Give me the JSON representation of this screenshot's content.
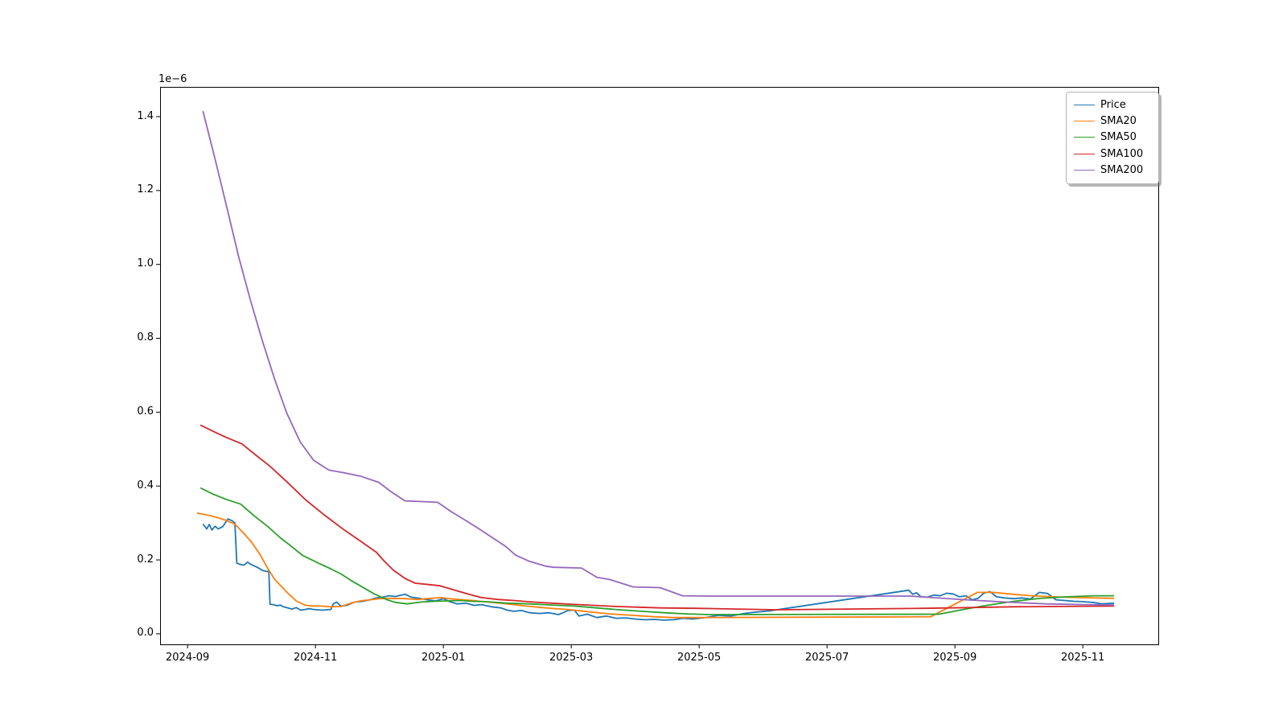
{
  "chart_data": {
    "type": "line",
    "title": "",
    "x_unit": "months since 2024-09-01",
    "x_axis": {
      "tick_labels": [
        "2024-09",
        "2024-11",
        "2025-01",
        "2025-03",
        "2025-05",
        "2025-07",
        "2025-09",
        "2025-11"
      ],
      "tick_months": [
        0,
        2,
        4,
        6,
        8,
        10,
        12,
        14
      ],
      "xlim_months": [
        -0.43,
        15.18
      ],
      "grid": false
    },
    "y_axis": {
      "offset_text": "1e−6",
      "tick_labels": [
        "0.0",
        "0.2",
        "0.4",
        "0.6",
        "0.8",
        "1.0",
        "1.2",
        "1.4"
      ],
      "tick_values": [
        0.0,
        0.2,
        0.4,
        0.6,
        0.8,
        1.0,
        1.2,
        1.4
      ],
      "ylim": [
        -0.0286,
        1.4806
      ],
      "grid": false
    },
    "legend": {
      "location": "upper right",
      "entries": [
        {
          "label": "Price",
          "color": "#1f77b4"
        },
        {
          "label": "SMA20",
          "color": "#ff7f0e"
        },
        {
          "label": "SMA50",
          "color": "#2ca02c"
        },
        {
          "label": "SMA100",
          "color": "#d62728"
        },
        {
          "label": "SMA200",
          "color": "#9467bd"
        }
      ]
    },
    "series": [
      {
        "name": "Price",
        "color": "#1f77b4",
        "points": [
          [
            0.24,
            0.297
          ],
          [
            0.3,
            0.284
          ],
          [
            0.34,
            0.296
          ],
          [
            0.38,
            0.281
          ],
          [
            0.43,
            0.291
          ],
          [
            0.48,
            0.284
          ],
          [
            0.55,
            0.29
          ],
          [
            0.63,
            0.311
          ],
          [
            0.7,
            0.306
          ],
          [
            0.74,
            0.3
          ],
          [
            0.77,
            0.191
          ],
          [
            0.84,
            0.187
          ],
          [
            0.88,
            0.186
          ],
          [
            0.94,
            0.194
          ],
          [
            0.98,
            0.189
          ],
          [
            1.04,
            0.184
          ],
          [
            1.09,
            0.18
          ],
          [
            1.13,
            0.176
          ],
          [
            1.18,
            0.171
          ],
          [
            1.23,
            0.169
          ],
          [
            1.27,
            0.169
          ],
          [
            1.29,
            0.08
          ],
          [
            1.34,
            0.079
          ],
          [
            1.4,
            0.076
          ],
          [
            1.45,
            0.078
          ],
          [
            1.5,
            0.073
          ],
          [
            1.57,
            0.07
          ],
          [
            1.63,
            0.067
          ],
          [
            1.7,
            0.071
          ],
          [
            1.77,
            0.064
          ],
          [
            1.84,
            0.066
          ],
          [
            1.9,
            0.068
          ],
          [
            1.97,
            0.066
          ],
          [
            2.04,
            0.065
          ],
          [
            2.11,
            0.064
          ],
          [
            2.24,
            0.066
          ],
          [
            2.28,
            0.081
          ],
          [
            2.33,
            0.086
          ],
          [
            2.4,
            0.075
          ],
          [
            2.49,
            0.077
          ],
          [
            2.61,
            0.086
          ],
          [
            2.74,
            0.088
          ],
          [
            2.85,
            0.092
          ],
          [
            2.95,
            0.097
          ],
          [
            3.05,
            0.099
          ],
          [
            3.15,
            0.103
          ],
          [
            3.25,
            0.101
          ],
          [
            3.4,
            0.107
          ],
          [
            3.5,
            0.099
          ],
          [
            3.62,
            0.096
          ],
          [
            3.75,
            0.092
          ],
          [
            3.88,
            0.089
          ],
          [
            4.0,
            0.095
          ],
          [
            4.1,
            0.087
          ],
          [
            4.22,
            0.081
          ],
          [
            4.35,
            0.083
          ],
          [
            4.48,
            0.077
          ],
          [
            4.6,
            0.079
          ],
          [
            4.75,
            0.073
          ],
          [
            4.9,
            0.07
          ],
          [
            5.0,
            0.064
          ],
          [
            5.1,
            0.061
          ],
          [
            5.22,
            0.063
          ],
          [
            5.35,
            0.057
          ],
          [
            5.5,
            0.055
          ],
          [
            5.65,
            0.057
          ],
          [
            5.8,
            0.052
          ],
          [
            5.95,
            0.063
          ],
          [
            6.05,
            0.064
          ],
          [
            6.12,
            0.048
          ],
          [
            6.25,
            0.053
          ],
          [
            6.4,
            0.044
          ],
          [
            6.55,
            0.048
          ],
          [
            6.7,
            0.042
          ],
          [
            6.85,
            0.043
          ],
          [
            7.0,
            0.04
          ],
          [
            7.15,
            0.038
          ],
          [
            7.3,
            0.039
          ],
          [
            7.45,
            0.037
          ],
          [
            7.6,
            0.038
          ],
          [
            7.75,
            0.042
          ],
          [
            7.9,
            0.04
          ],
          [
            8.1,
            0.044
          ],
          [
            8.3,
            0.05
          ],
          [
            8.5,
            0.048
          ],
          [
            8.7,
            0.055
          ],
          [
            8.9,
            0.059
          ],
          [
            9.1,
            0.062
          ],
          [
            11.28,
            0.118
          ],
          [
            11.34,
            0.107
          ],
          [
            11.4,
            0.111
          ],
          [
            11.47,
            0.1
          ],
          [
            11.57,
            0.099
          ],
          [
            11.67,
            0.105
          ],
          [
            11.77,
            0.103
          ],
          [
            11.87,
            0.11
          ],
          [
            11.97,
            0.108
          ],
          [
            12.07,
            0.1
          ],
          [
            12.17,
            0.103
          ],
          [
            12.27,
            0.092
          ],
          [
            12.36,
            0.096
          ],
          [
            12.45,
            0.11
          ],
          [
            12.55,
            0.114
          ],
          [
            12.65,
            0.1
          ],
          [
            12.78,
            0.097
          ],
          [
            12.92,
            0.095
          ],
          [
            13.05,
            0.097
          ],
          [
            13.18,
            0.094
          ],
          [
            13.32,
            0.112
          ],
          [
            13.45,
            0.109
          ],
          [
            13.58,
            0.092
          ],
          [
            13.72,
            0.09
          ],
          [
            13.86,
            0.088
          ],
          [
            14.0,
            0.087
          ],
          [
            14.15,
            0.085
          ],
          [
            14.3,
            0.081
          ],
          [
            14.49,
            0.083
          ]
        ]
      },
      {
        "name": "SMA20",
        "color": "#ff7f0e",
        "points": [
          [
            0.15,
            0.327
          ],
          [
            0.35,
            0.32
          ],
          [
            0.5,
            0.313
          ],
          [
            0.6,
            0.307
          ],
          [
            0.74,
            0.297
          ],
          [
            0.88,
            0.272
          ],
          [
            1.0,
            0.248
          ],
          [
            1.13,
            0.216
          ],
          [
            1.25,
            0.178
          ],
          [
            1.36,
            0.148
          ],
          [
            1.48,
            0.126
          ],
          [
            1.58,
            0.108
          ],
          [
            1.7,
            0.089
          ],
          [
            1.83,
            0.078
          ],
          [
            1.95,
            0.075
          ],
          [
            2.1,
            0.075
          ],
          [
            2.25,
            0.073
          ],
          [
            2.4,
            0.074
          ],
          [
            2.55,
            0.083
          ],
          [
            2.7,
            0.089
          ],
          [
            2.85,
            0.092
          ],
          [
            3.0,
            0.095
          ],
          [
            3.2,
            0.096
          ],
          [
            3.4,
            0.095
          ],
          [
            3.6,
            0.093
          ],
          [
            3.8,
            0.096
          ],
          [
            3.96,
            0.098
          ],
          [
            4.15,
            0.094
          ],
          [
            4.4,
            0.091
          ],
          [
            4.7,
            0.086
          ],
          [
            5.0,
            0.081
          ],
          [
            5.3,
            0.075
          ],
          [
            5.55,
            0.071
          ],
          [
            5.75,
            0.068
          ],
          [
            5.95,
            0.066
          ],
          [
            6.25,
            0.06
          ],
          [
            6.6,
            0.054
          ],
          [
            6.95,
            0.05
          ],
          [
            7.3,
            0.046
          ],
          [
            7.6,
            0.044
          ],
          [
            8.0,
            0.044
          ],
          [
            11.62,
            0.046
          ],
          [
            12.35,
            0.112
          ],
          [
            12.6,
            0.112
          ],
          [
            12.9,
            0.107
          ],
          [
            13.2,
            0.103
          ],
          [
            13.55,
            0.1
          ],
          [
            13.95,
            0.098
          ],
          [
            14.49,
            0.096
          ]
        ]
      },
      {
        "name": "SMA50",
        "color": "#2ca02c",
        "points": [
          [
            0.2,
            0.395
          ],
          [
            0.4,
            0.378
          ],
          [
            0.6,
            0.364
          ],
          [
            0.83,
            0.351
          ],
          [
            1.05,
            0.318
          ],
          [
            1.25,
            0.291
          ],
          [
            1.45,
            0.26
          ],
          [
            1.6,
            0.24
          ],
          [
            1.8,
            0.212
          ],
          [
            2.05,
            0.191
          ],
          [
            2.25,
            0.175
          ],
          [
            2.4,
            0.162
          ],
          [
            2.55,
            0.145
          ],
          [
            2.67,
            0.133
          ],
          [
            2.8,
            0.12
          ],
          [
            2.92,
            0.108
          ],
          [
            3.02,
            0.1
          ],
          [
            3.12,
            0.092
          ],
          [
            3.25,
            0.085
          ],
          [
            3.43,
            0.081
          ],
          [
            3.65,
            0.086
          ],
          [
            3.85,
            0.088
          ],
          [
            4.05,
            0.089
          ],
          [
            4.28,
            0.09
          ],
          [
            4.45,
            0.088
          ],
          [
            4.65,
            0.087
          ],
          [
            5.0,
            0.083
          ],
          [
            5.35,
            0.081
          ],
          [
            5.7,
            0.078
          ],
          [
            6.05,
            0.075
          ],
          [
            6.4,
            0.07
          ],
          [
            6.75,
            0.065
          ],
          [
            7.1,
            0.061
          ],
          [
            7.45,
            0.057
          ],
          [
            7.8,
            0.054
          ],
          [
            8.15,
            0.052
          ],
          [
            11.75,
            0.053
          ],
          [
            12.2,
            0.068
          ],
          [
            12.5,
            0.077
          ],
          [
            12.92,
            0.088
          ],
          [
            13.33,
            0.096
          ],
          [
            13.76,
            0.1
          ],
          [
            14.18,
            0.103
          ],
          [
            14.49,
            0.103
          ]
        ]
      },
      {
        "name": "SMA100",
        "color": "#d62728",
        "points": [
          [
            0.2,
            0.565
          ],
          [
            0.4,
            0.548
          ],
          [
            0.6,
            0.532
          ],
          [
            0.85,
            0.514
          ],
          [
            1.08,
            0.482
          ],
          [
            1.28,
            0.455
          ],
          [
            1.55,
            0.412
          ],
          [
            1.85,
            0.362
          ],
          [
            2.15,
            0.32
          ],
          [
            2.45,
            0.281
          ],
          [
            2.72,
            0.249
          ],
          [
            2.95,
            0.221
          ],
          [
            3.08,
            0.196
          ],
          [
            3.22,
            0.172
          ],
          [
            3.4,
            0.15
          ],
          [
            3.56,
            0.137
          ],
          [
            3.73,
            0.134
          ],
          [
            3.95,
            0.13
          ],
          [
            4.2,
            0.117
          ],
          [
            4.4,
            0.107
          ],
          [
            4.6,
            0.098
          ],
          [
            4.85,
            0.093
          ],
          [
            5.1,
            0.09
          ],
          [
            5.4,
            0.086
          ],
          [
            5.7,
            0.083
          ],
          [
            6.0,
            0.08
          ],
          [
            6.35,
            0.077
          ],
          [
            6.7,
            0.074
          ],
          [
            7.05,
            0.072
          ],
          [
            7.4,
            0.07
          ],
          [
            7.95,
            0.069
          ],
          [
            9.2,
            0.065
          ],
          [
            11.5,
            0.069
          ],
          [
            12.2,
            0.071
          ],
          [
            12.9,
            0.073
          ],
          [
            13.6,
            0.074
          ],
          [
            14.49,
            0.075
          ]
        ]
      },
      {
        "name": "SMA200",
        "color": "#9467bd",
        "points": [
          [
            0.24,
            1.415
          ],
          [
            0.43,
            1.285
          ],
          [
            0.62,
            1.15
          ],
          [
            0.8,
            1.02
          ],
          [
            0.98,
            0.905
          ],
          [
            1.17,
            0.793
          ],
          [
            1.36,
            0.69
          ],
          [
            1.55,
            0.598
          ],
          [
            1.76,
            0.52
          ],
          [
            1.97,
            0.47
          ],
          [
            2.21,
            0.443
          ],
          [
            2.45,
            0.436
          ],
          [
            2.72,
            0.426
          ],
          [
            2.99,
            0.41
          ],
          [
            3.18,
            0.385
          ],
          [
            3.4,
            0.36
          ],
          [
            3.66,
            0.358
          ],
          [
            3.91,
            0.356
          ],
          [
            4.12,
            0.331
          ],
          [
            4.33,
            0.309
          ],
          [
            4.55,
            0.285
          ],
          [
            4.76,
            0.261
          ],
          [
            4.97,
            0.237
          ],
          [
            5.13,
            0.213
          ],
          [
            5.35,
            0.196
          ],
          [
            5.6,
            0.183
          ],
          [
            5.73,
            0.18
          ],
          [
            6.16,
            0.178
          ],
          [
            6.4,
            0.153
          ],
          [
            6.6,
            0.147
          ],
          [
            6.97,
            0.127
          ],
          [
            7.39,
            0.125
          ],
          [
            7.74,
            0.103
          ],
          [
            8.2,
            0.102
          ],
          [
            11.3,
            0.102
          ],
          [
            12.17,
            0.092
          ],
          [
            12.79,
            0.086
          ],
          [
            13.42,
            0.081
          ],
          [
            14.05,
            0.079
          ],
          [
            14.49,
            0.078
          ]
        ]
      }
    ]
  }
}
